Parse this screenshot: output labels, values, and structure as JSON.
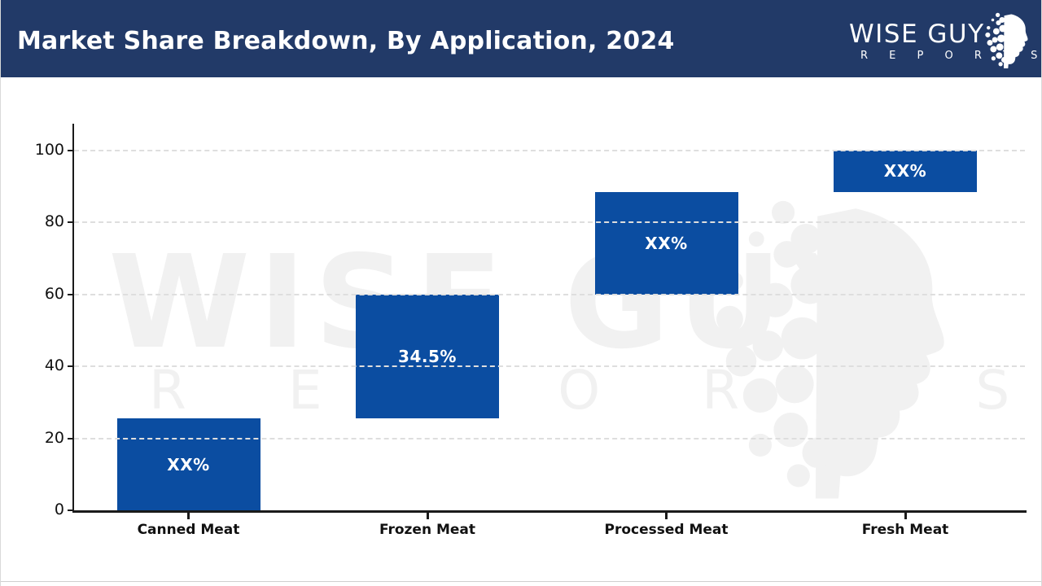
{
  "header": {
    "title": "Market Share Breakdown, By Application, 2024",
    "logo": {
      "line1": "WISE GUY",
      "line2": "R E P O R T S"
    }
  },
  "watermark": {
    "line1": "WISE GUY",
    "line2": "R E P O R T S"
  },
  "chart_data": {
    "type": "bar",
    "subtype": "floating-waterfall",
    "title": "Market Share Breakdown, By Application, 2024",
    "categories": [
      "Canned Meat",
      "Frozen Meat",
      "Processed Meat",
      "Fresh Meat"
    ],
    "segments": [
      {
        "category": "Canned Meat",
        "start": 0,
        "end": 25.5,
        "label": "XX%"
      },
      {
        "category": "Frozen Meat",
        "start": 25.5,
        "end": 60,
        "label": "34.5%"
      },
      {
        "category": "Processed Meat",
        "start": 60,
        "end": 88.5,
        "label": "XX%"
      },
      {
        "category": "Fresh Meat",
        "start": 88.5,
        "end": 100,
        "label": "XX%"
      }
    ],
    "xlabel": "",
    "ylabel": "",
    "ylim": [
      0,
      100
    ],
    "yticks": [
      0,
      20,
      40,
      60,
      80,
      100
    ],
    "grid": "dashed-horizontal",
    "legend": "none",
    "bar_color": "#0b4da1",
    "bar_label_color": "#ffffff"
  },
  "colors": {
    "header_bg": "#223a68",
    "bar": "#0b4da1",
    "grid": "#dedede",
    "axis": "#1a1a1a",
    "watermark": "#f1f1f1",
    "page_bg": "#ffffff",
    "footer_rule": "#cfcfcf"
  }
}
